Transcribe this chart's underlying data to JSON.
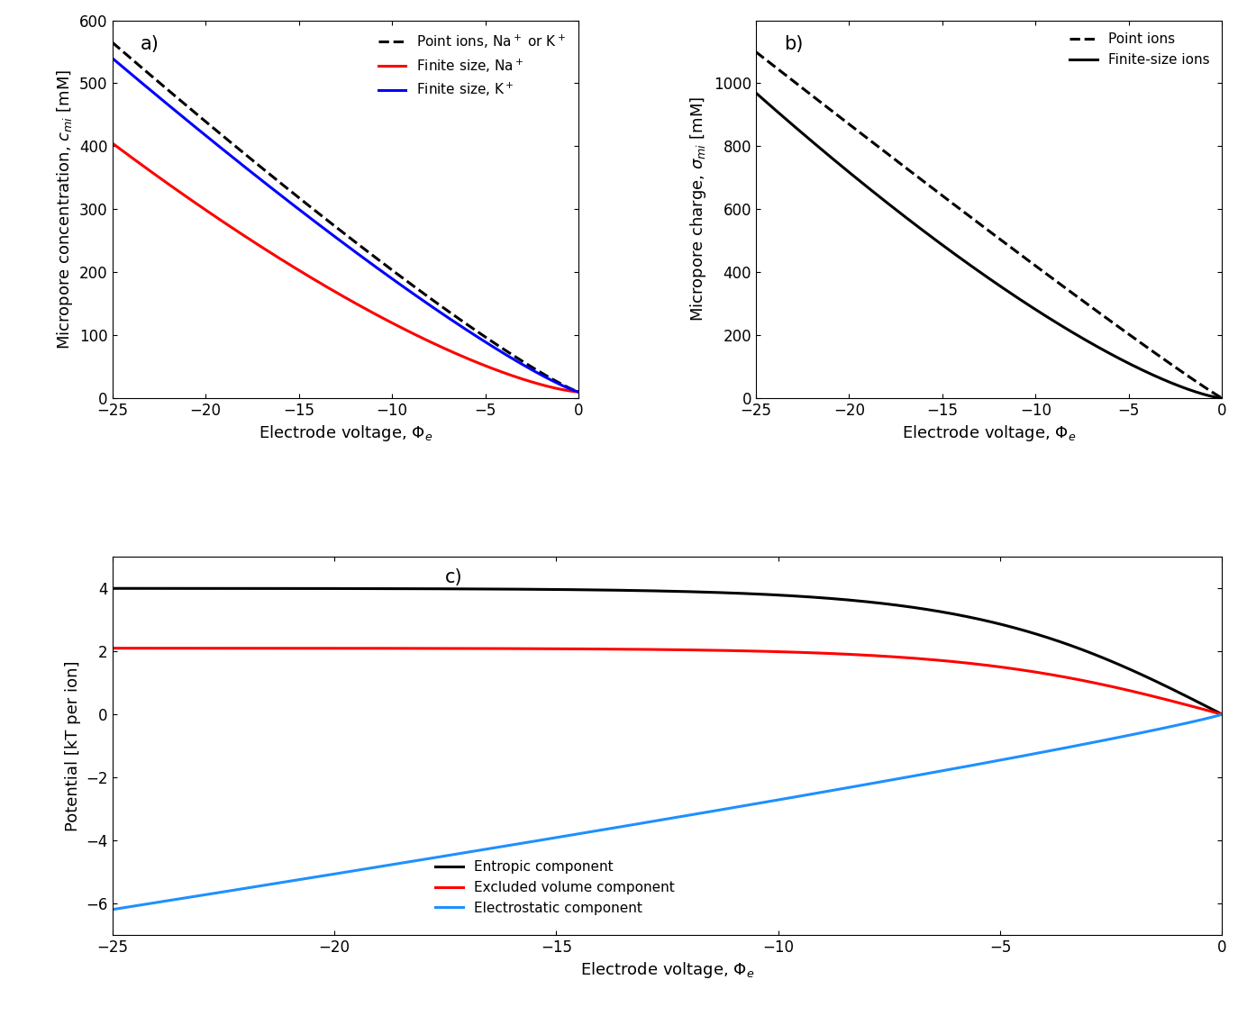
{
  "x_range": [
    -25,
    0
  ],
  "n_points": 500,
  "panel_a": {
    "ylabel": "Micropore concentration, $c_{mi}$ [mM]",
    "xlabel": "Electrode voltage, $\\Phi_e$",
    "ylim": [
      0,
      600
    ],
    "yticks": [
      0,
      100,
      200,
      300,
      400,
      500,
      600
    ],
    "xticks": [
      -25,
      -20,
      -15,
      -10,
      -5,
      0
    ],
    "label": "a)",
    "legend_labels": [
      "Point ions, Na$^+$ or K$^+$",
      "Finite size, Na$^+$",
      "Finite size, K$^+$"
    ]
  },
  "panel_b": {
    "ylabel": "Micropore charge, $\\sigma_{mi}$ [mM]",
    "xlabel": "Electrode voltage, $\\Phi_e$",
    "ylim": [
      0,
      1200
    ],
    "yticks": [
      0,
      200,
      400,
      600,
      800,
      1000
    ],
    "xticks": [
      -25,
      -20,
      -15,
      -10,
      -5,
      0
    ],
    "label": "b)",
    "legend_labels": [
      "Point ions",
      "Finite-size ions"
    ]
  },
  "panel_c": {
    "ylabel": "Potential [kT per ion]",
    "xlabel": "Electrode voltage, $\\Phi_e$",
    "ylim": [
      -7,
      5
    ],
    "yticks": [
      -6,
      -4,
      -2,
      0,
      2,
      4
    ],
    "xticks": [
      -25,
      -20,
      -15,
      -10,
      -5,
      0
    ],
    "label": "c)",
    "legend_labels": [
      "Entropic component",
      "Excluded volume component",
      "Electrostatic component"
    ]
  },
  "line_width": 2.2,
  "font_size": 13,
  "tick_font_size": 12
}
